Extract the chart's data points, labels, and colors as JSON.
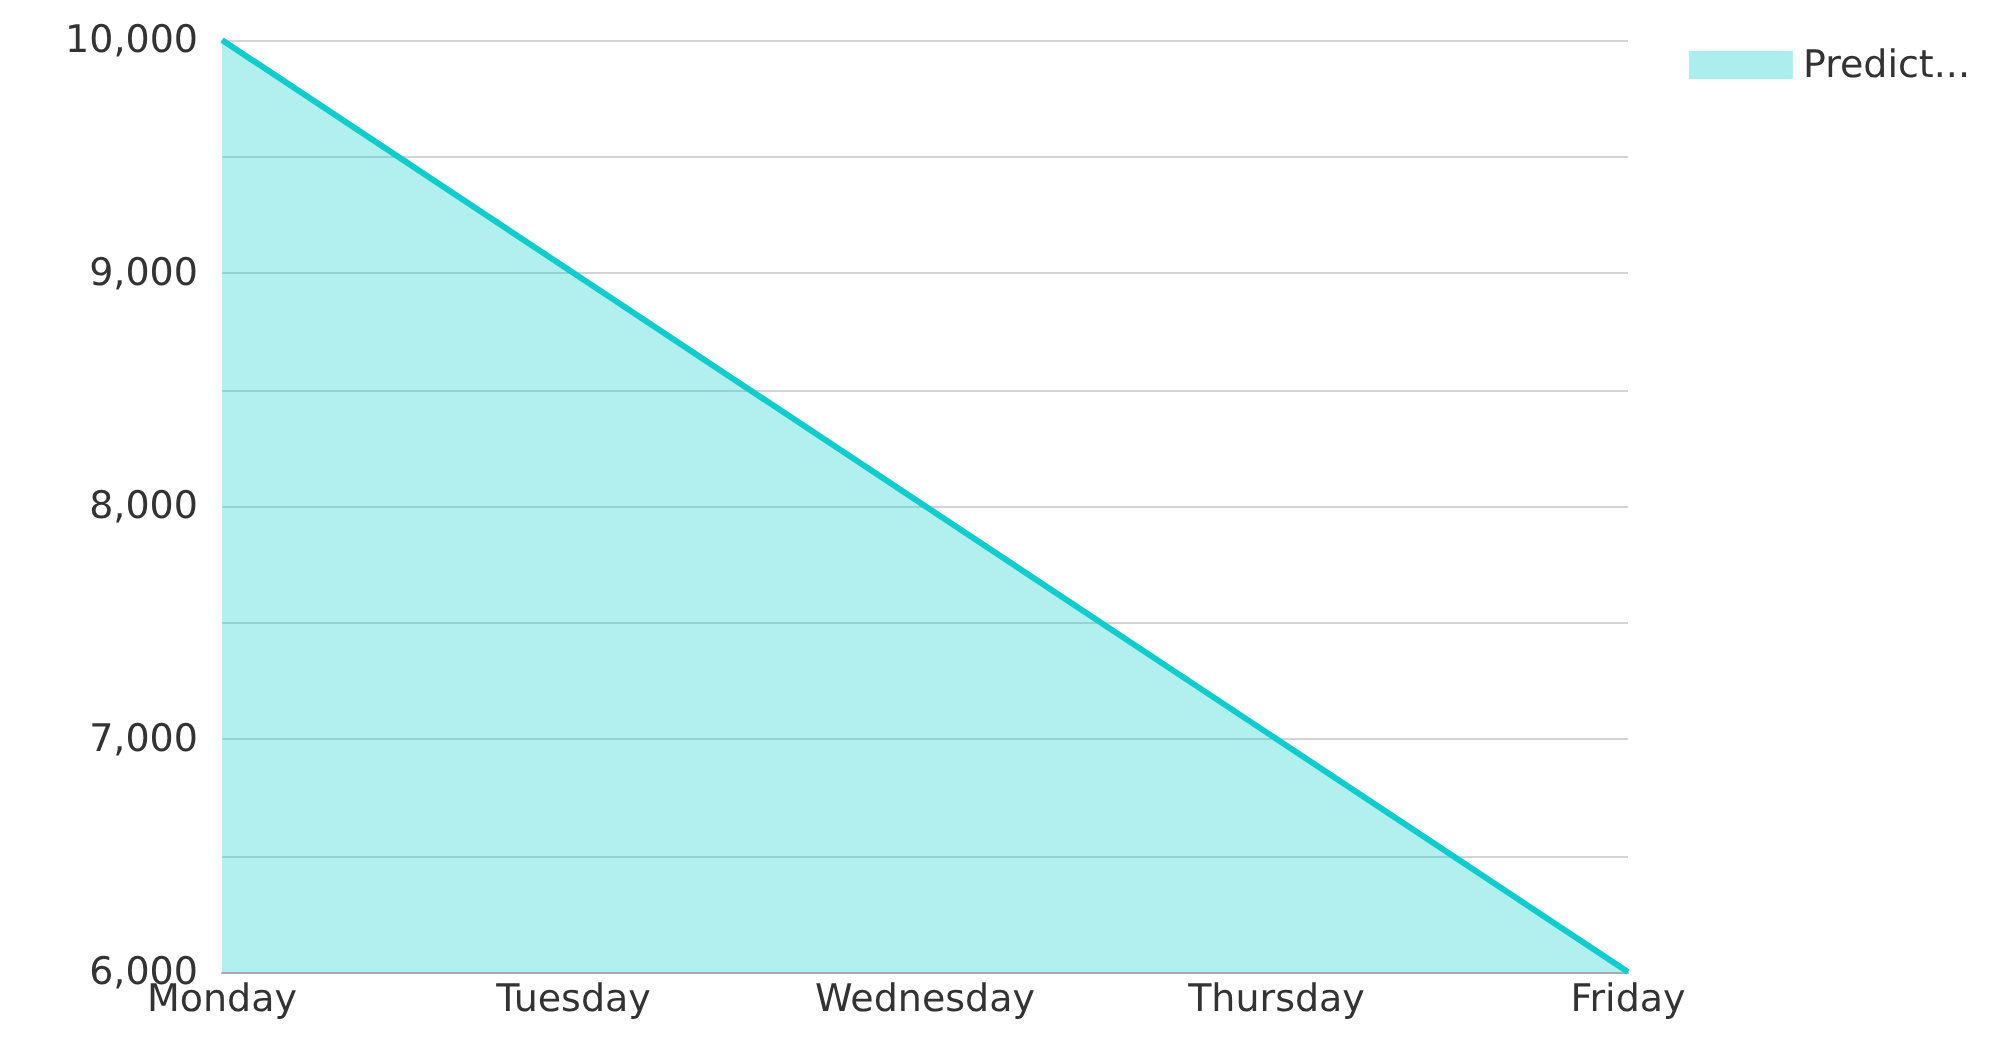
{
  "chart_data": {
    "type": "area",
    "categories": [
      "Monday",
      "Tuesday",
      "Wednesday",
      "Thursday",
      "Friday"
    ],
    "series": [
      {
        "name": "Predict...",
        "color": "#11cccc",
        "values": [
          10000,
          9000,
          8000,
          7000,
          6000
        ]
      }
    ],
    "ylim": [
      6000,
      10000
    ],
    "yticks": [
      {
        "value": 6000,
        "label": "6,000"
      },
      {
        "value": 6500,
        "label": null
      },
      {
        "value": 7000,
        "label": "7,000"
      },
      {
        "value": 7500,
        "label": null
      },
      {
        "value": 8000,
        "label": "8,000"
      },
      {
        "value": 8500,
        "label": null
      },
      {
        "value": 9000,
        "label": "9,000"
      },
      {
        "value": 9500,
        "label": null
      },
      {
        "value": 10000,
        "label": "10,000"
      }
    ],
    "grid": "y",
    "legend": "top right"
  }
}
